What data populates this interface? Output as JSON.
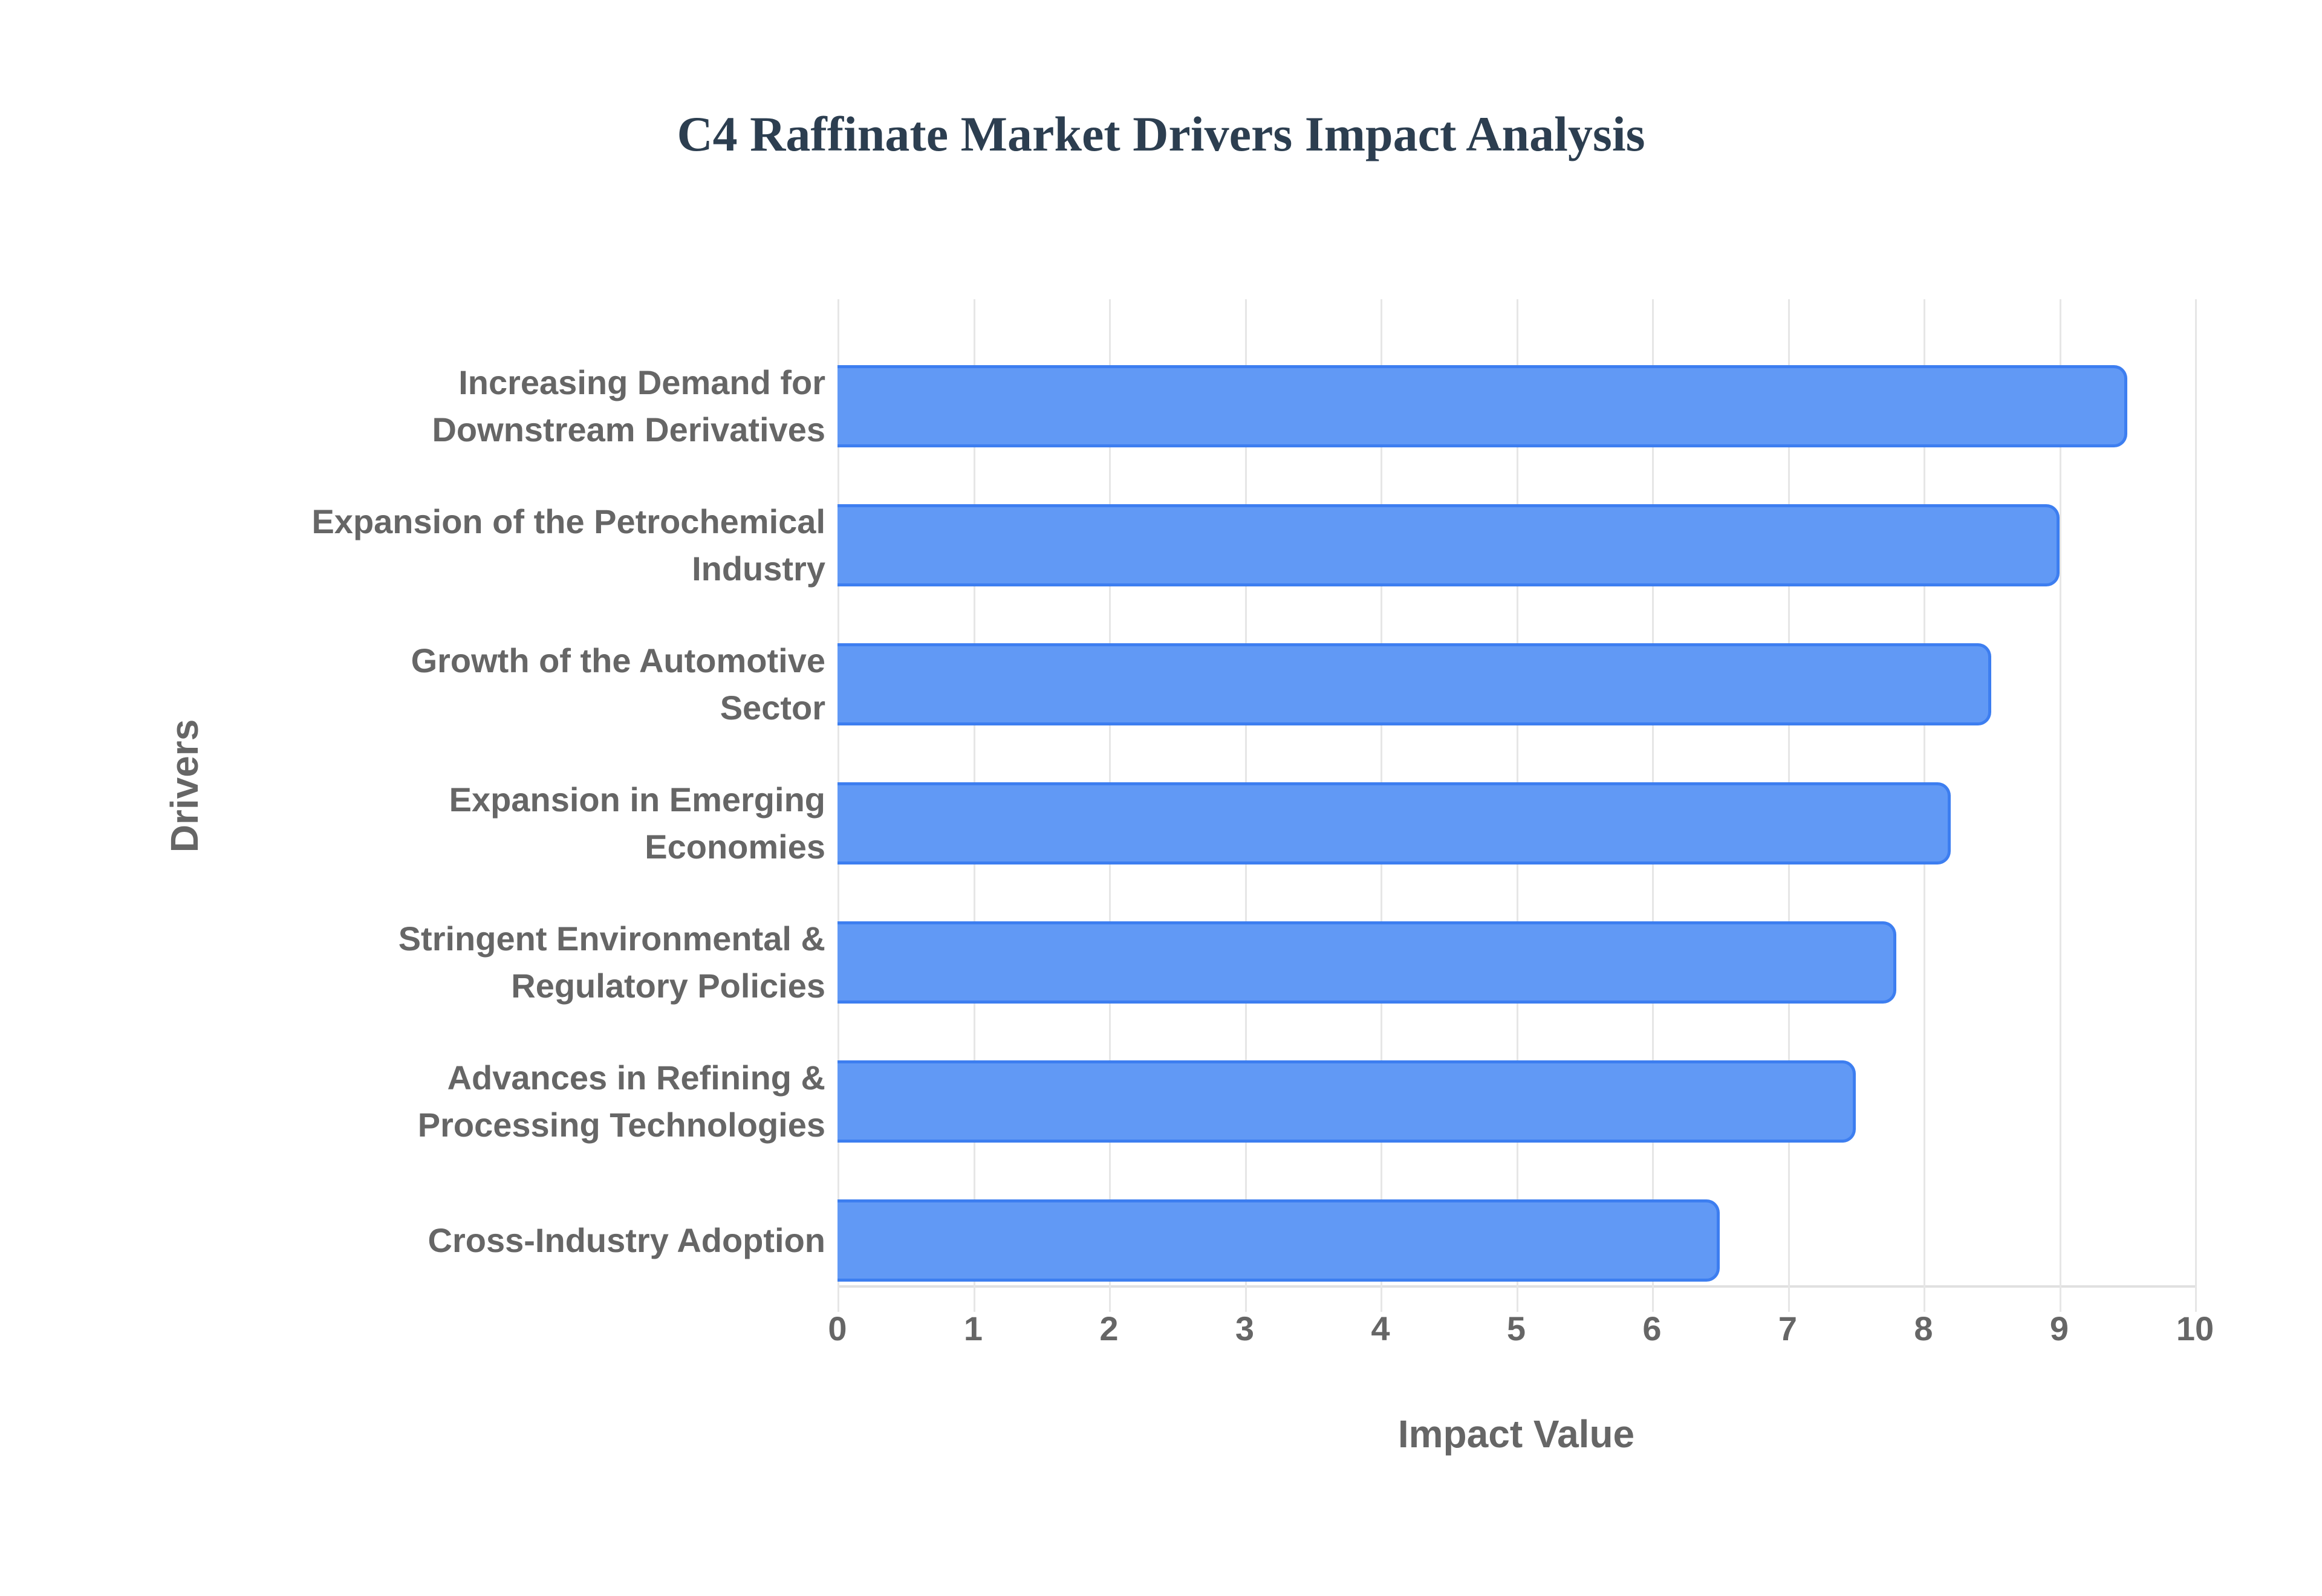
{
  "colors": {
    "title": "#2c3e50",
    "bar_fill": "#6199f5",
    "bar_border": "#3d7ef0",
    "text": "#666666",
    "grid": "#e6e6e6"
  },
  "chart_data": {
    "type": "bar",
    "orientation": "horizontal",
    "title": "C4 Raffinate Market Drivers Impact Analysis",
    "xlabel": "Impact Value",
    "ylabel": "Drivers",
    "xlim": [
      0,
      10
    ],
    "xticks": [
      "0",
      "1",
      "2",
      "3",
      "4",
      "5",
      "6",
      "7",
      "8",
      "9",
      "10"
    ],
    "grid": true,
    "legend": null,
    "categories": [
      [
        "Increasing Demand for",
        "Downstream Derivatives"
      ],
      [
        "Expansion of the Petrochemical",
        "Industry"
      ],
      [
        "Growth of the Automotive",
        "Sector"
      ],
      [
        "Expansion in Emerging",
        "Economies"
      ],
      [
        "Stringent Environmental &",
        "Regulatory Policies"
      ],
      [
        "Advances in Refining &",
        "Processing Technologies"
      ],
      [
        "Cross-Industry Adoption"
      ]
    ],
    "values": [
      9.5,
      9.0,
      8.5,
      8.2,
      7.8,
      7.5,
      6.5
    ]
  }
}
